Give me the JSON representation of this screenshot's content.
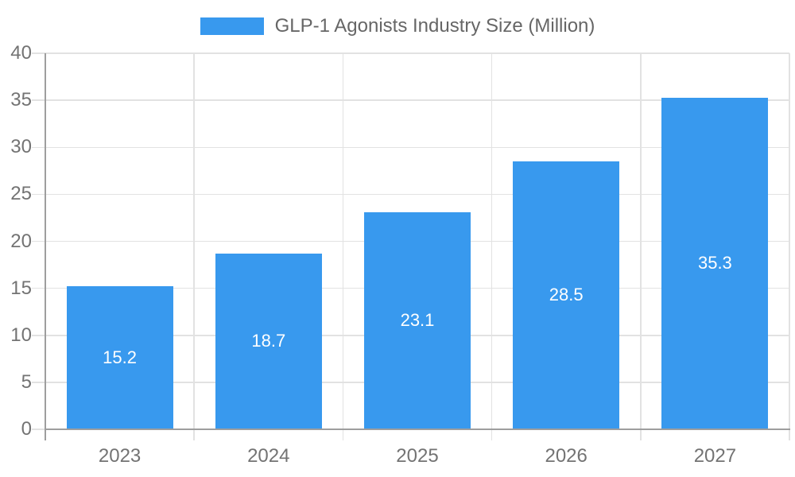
{
  "chart_data": {
    "type": "bar",
    "title": "GLP-1 Agonists Industry Size (Million)",
    "legend_position": "top",
    "categories": [
      "2023",
      "2024",
      "2025",
      "2026",
      "2027"
    ],
    "series": [
      {
        "name": "GLP-1 Agonists Industry Size (Million)",
        "values": [
          15.2,
          18.7,
          23.1,
          28.5,
          35.3
        ]
      }
    ],
    "value_labels": [
      "15.2",
      "18.7",
      "23.1",
      "28.5",
      "35.3"
    ],
    "value_label_placement": "center-inside-bar",
    "xlabel": "",
    "ylabel": "",
    "ylim": [
      0,
      40
    ],
    "yticks": [
      0,
      5,
      10,
      15,
      20,
      25,
      30,
      35,
      40
    ],
    "grid": true,
    "colors": {
      "bar": "#3899ee",
      "grid": "#e2e2e2",
      "axis": "#9e9e9e",
      "tick_text": "#737373",
      "legend_text": "#666666",
      "value_label": "#ffffff",
      "background": "#ffffff"
    }
  }
}
